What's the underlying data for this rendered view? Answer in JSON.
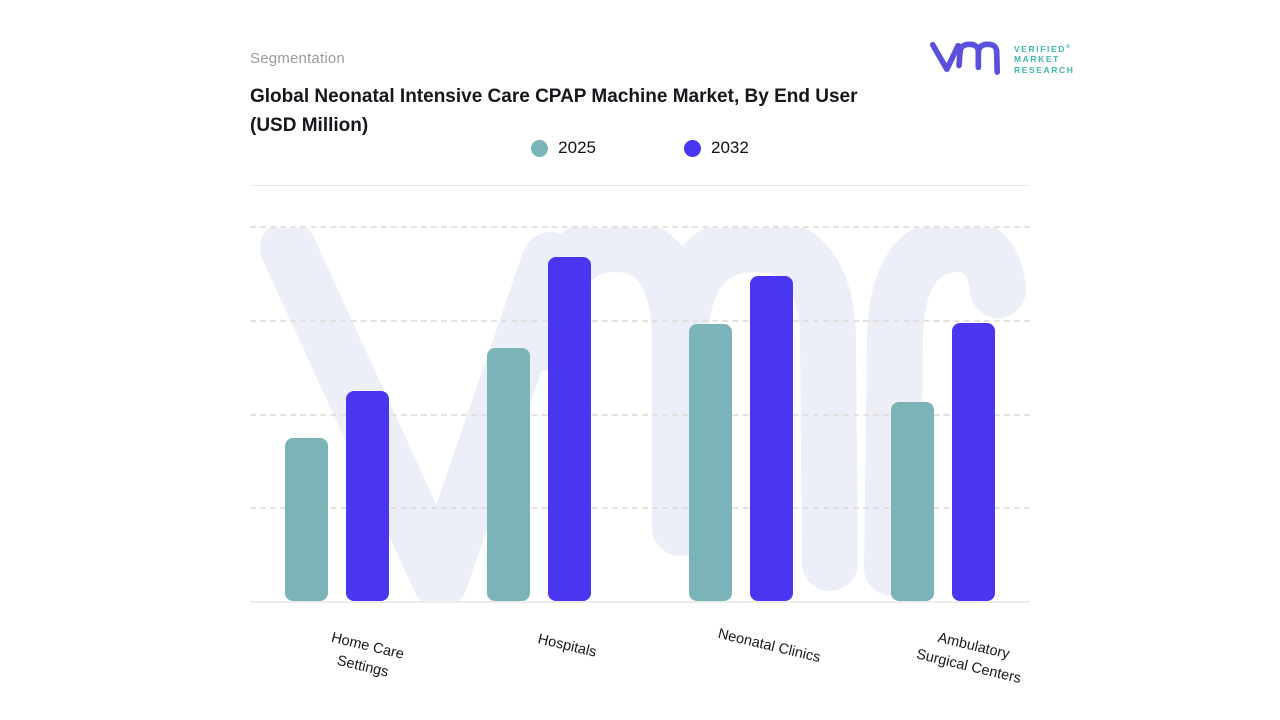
{
  "header": {
    "eyebrow": "Segmentation",
    "title": "Global Neonatal Intensive Care CPAP Machine Market, By End User (USD Million)"
  },
  "logo": {
    "name": "Verified Market Research",
    "lines": [
      "VERIFIED",
      "MARKET",
      "RESEARCH"
    ],
    "registered": "®",
    "glyph_color": "#5a50dc",
    "text_color": "#3db8ab"
  },
  "colors": {
    "series_2025": "#7ab3b8",
    "series_2032": "#4a36f0",
    "watermark": "#edeff8",
    "gridline": "#e3dddb",
    "baseline": "#ececec",
    "title_text": "#15171c",
    "eyebrow_text": "#9b9b9d"
  },
  "chart_data": {
    "type": "bar",
    "title": "Global Neonatal Intensive Care CPAP Machine Market, By End User (USD Million)",
    "categories": [
      "Home Care Settings",
      "Hospitals",
      "Neonatal Clinics",
      "Ambulatory Surgical Centers"
    ],
    "series": [
      {
        "name": "2025",
        "color": "#7ab3b8",
        "values": [
          43.5,
          67.5,
          73.9,
          53.1
        ]
      },
      {
        "name": "2032",
        "color": "#4a36f0",
        "values": [
          56.0,
          91.7,
          86.7,
          74.1
        ]
      }
    ],
    "xlabel": "",
    "ylabel": "",
    "ylim": [
      0,
      101.6
    ],
    "gridlines": [
      25,
      50,
      75,
      100
    ],
    "grid_style": "horizontal-dashed",
    "y_axis_labels_visible": false,
    "legend_position": "top-center"
  }
}
